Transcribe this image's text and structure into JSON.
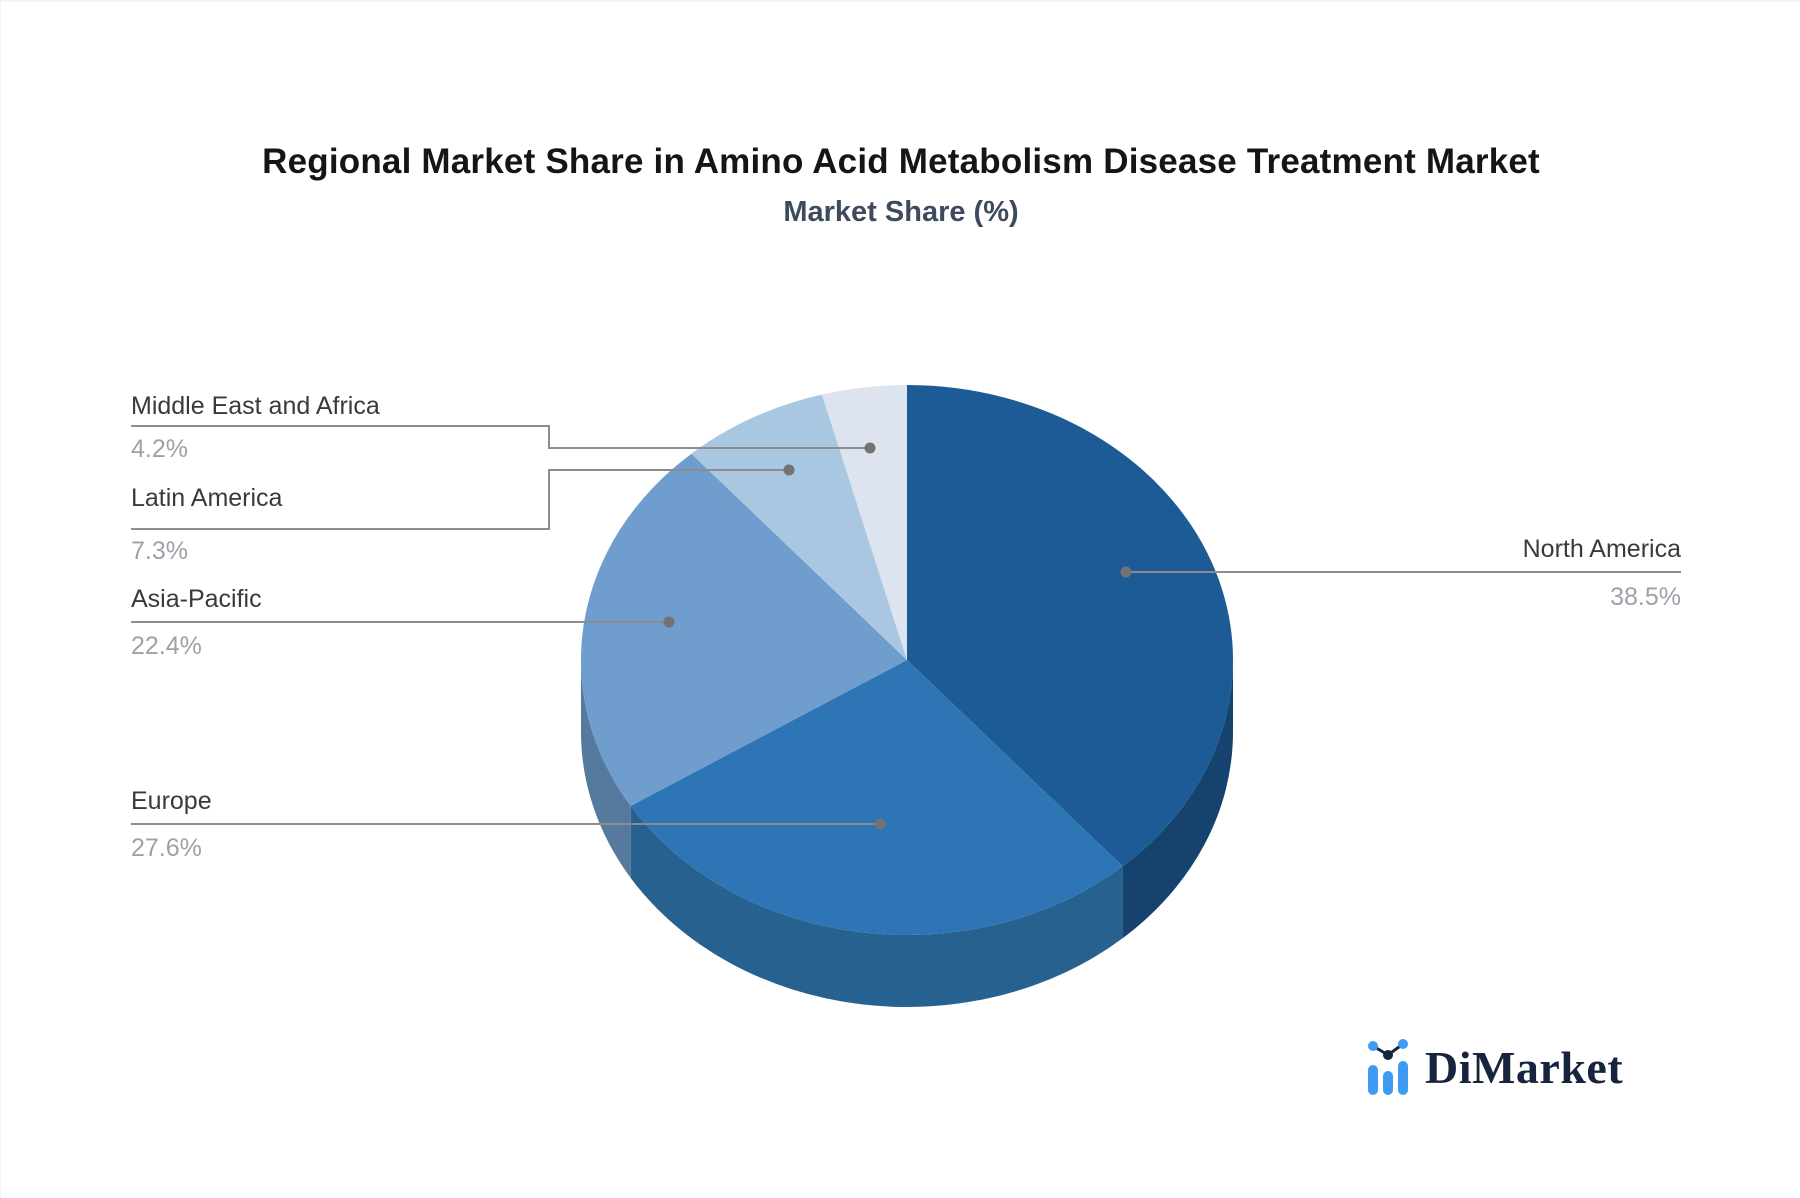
{
  "chart_data": {
    "type": "pie",
    "title": "Regional Market Share in Amino Acid Metabolism Disease Treatment Market",
    "subtitle": "Market Share (%)",
    "unit": "%",
    "style": "3d-pie",
    "start_angle": "12-o-clock",
    "direction": "clockwise",
    "slices": [
      {
        "label": "North America",
        "value": 38.5,
        "display_value": "38.5%",
        "color": "#1d5b97",
        "side_color": "#15436e"
      },
      {
        "label": "Europe",
        "value": 27.6,
        "display_value": "27.6%",
        "color": "#2e75b6",
        "side_color": "#27618f"
      },
      {
        "label": "Asia-Pacific",
        "value": 22.4,
        "display_value": "22.4%",
        "color": "#6f9dcd",
        "side_color": "#56799e"
      },
      {
        "label": "Latin America",
        "value": 7.3,
        "display_value": "7.3%",
        "color": "#aac7e2",
        "side_color": "#8fa9c2"
      },
      {
        "label": "Middle East and Africa",
        "value": 4.2,
        "display_value": "4.2%",
        "color": "#dde4ef",
        "side_color": "#b9c3d2"
      }
    ],
    "legend_position": "callout-labels",
    "leader_line_color": "#8c8c8c",
    "leader_dot_color": "#737373",
    "label_text_color": "#3a3a3a",
    "value_text_color": "#9da2a8",
    "title_color": "#151515",
    "subtitle_color": "#3e4a5e"
  },
  "branding": {
    "logo_text": "DiMarket",
    "logo_icon": "bar-chart-with-trend-dots-icon",
    "logo_accent_color": "#3e9bf4",
    "logo_text_color": "#16243d"
  }
}
